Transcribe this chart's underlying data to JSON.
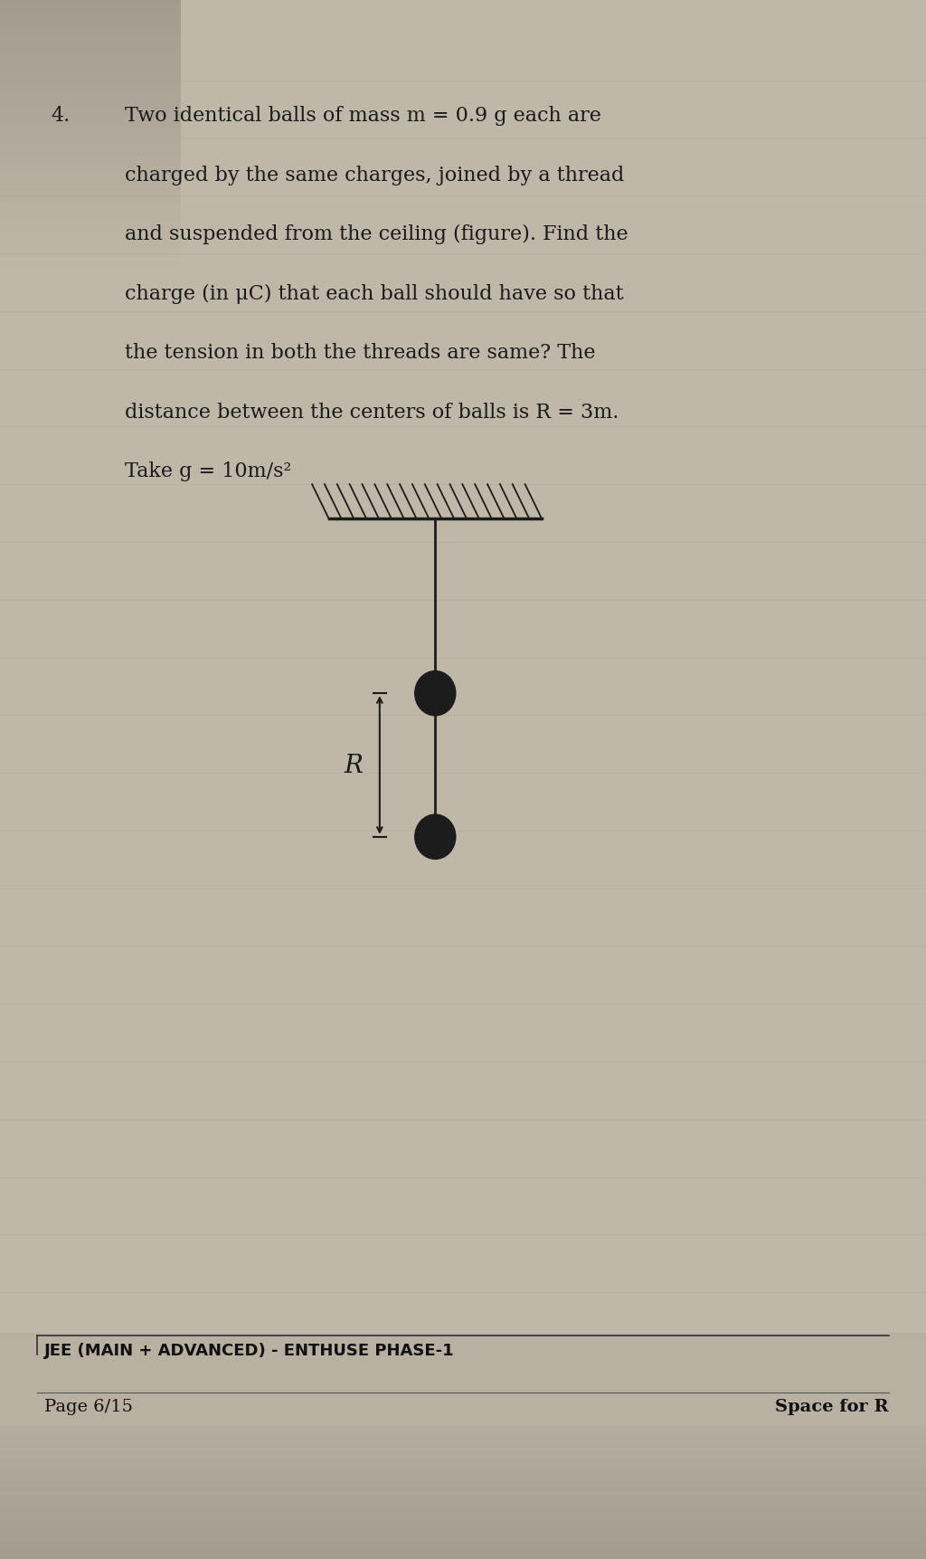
{
  "bg_color_top": "#b8b0a0",
  "bg_color_main": "#c0b8a8",
  "bg_color_bottom": "#a8a098",
  "text_color": "#1a1a1a",
  "question_number": "4.",
  "question_text_lines": [
    "Two identical balls of mass m = 0.9 g each are",
    "charged by the same charges, joined by a thread",
    "and suspended from the ceiling (figure). Find the",
    "charge (in μC) that each ball should have so that",
    "the tension in both the threads are same? The",
    "distance between the centers of balls is R = 3m.",
    "Take g = 10m/s²"
  ],
  "footer_text": "JEE (MAIN + ADVANCED) - ENTHUSE PHASE-1",
  "page_text": "Page 6/15",
  "space_text": "Space for R",
  "thread_color": "#1c1c1c",
  "ball_color": "#1c1c1c",
  "R_label": "R"
}
